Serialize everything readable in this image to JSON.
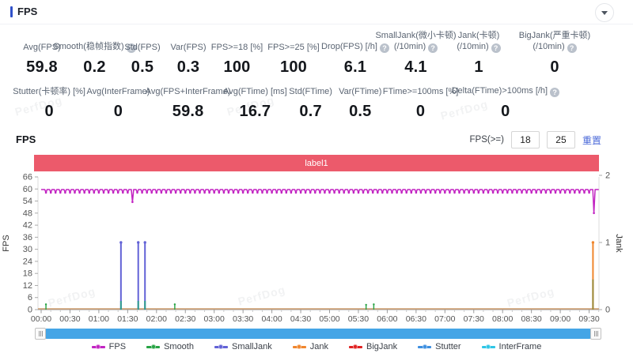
{
  "watermark": "PerfDog",
  "header": {
    "title": "FPS"
  },
  "stats": {
    "row1": [
      {
        "label": "Avg(FPS)",
        "value": "59.8"
      },
      {
        "label": "Smooth(稳帧指数)",
        "value": "0.2",
        "help": true
      },
      {
        "label": "Std(FPS)",
        "value": "0.5"
      },
      {
        "label": "Var(FPS)",
        "value": "0.3"
      },
      {
        "label": "FPS>=18 [%]",
        "value": "100"
      },
      {
        "label": "FPS>=25 [%]",
        "value": "100"
      },
      {
        "label": "Drop(FPS) [/h]",
        "value": "6.1",
        "help": true
      },
      {
        "label": "SmallJank(微小卡顿)",
        "label2": "(/10min)",
        "value": "4.1",
        "help": true
      },
      {
        "label": "Jank(卡顿)",
        "label2": "(/10min)",
        "value": "1",
        "help": true
      },
      {
        "label": "BigJank(严重卡顿)",
        "label2": "(/10min)",
        "value": "0",
        "help": true
      }
    ],
    "row2": [
      {
        "label": "Stutter(卡顿率) [%]",
        "value": "0"
      },
      {
        "label": "Avg(InterFrame)",
        "value": "0"
      },
      {
        "label": "Avg(FPS+InterFrame)",
        "value": "59.8"
      },
      {
        "label": "Avg(FTime) [ms]",
        "value": "16.7"
      },
      {
        "label": "Std(FTime)",
        "value": "0.7"
      },
      {
        "label": "Var(FTime)",
        "value": "0.5"
      },
      {
        "label": "FTime>=100ms [%]",
        "value": "0"
      },
      {
        "label": "Delta(FTime)>100ms [/h]",
        "value": "0",
        "help": true
      }
    ]
  },
  "chart_section": {
    "title": "FPS",
    "fps_ge_label": "FPS(>=)",
    "threshold_low": "18",
    "threshold_high": "25",
    "reset_label": "重置",
    "banner": {
      "text": "label1",
      "color": "#ec5a6b"
    }
  },
  "chart_data": {
    "type": "line",
    "x_ticks": [
      "00:00",
      "00:30",
      "01:00",
      "01:30",
      "02:00",
      "02:30",
      "03:00",
      "03:30",
      "04:00",
      "04:30",
      "05:00",
      "05:30",
      "06:00",
      "06:30",
      "07:00",
      "07:30",
      "08:00",
      "08:30",
      "09:00",
      "09:30"
    ],
    "x_tick_interval_min": 30,
    "x_minor_tick_min": 10,
    "t_end_min": 580,
    "y_left": {
      "label": "FPS",
      "ticks": [
        0,
        6,
        12,
        18,
        24,
        30,
        36,
        42,
        48,
        54,
        60,
        66
      ],
      "range": [
        0,
        66
      ]
    },
    "y_right": {
      "label": "Jank",
      "ticks": [
        0,
        1,
        2
      ],
      "range": [
        0,
        2
      ]
    },
    "series": [
      {
        "name": "FPS",
        "color": "#c224c2",
        "axis": "left",
        "render": "line",
        "baseline": 59.7,
        "dip_value": 58.2,
        "dip_step_min": 5,
        "deep_dips": [
          [
            95,
            53.5
          ],
          [
            574,
            48
          ]
        ]
      },
      {
        "name": "Smooth",
        "color": "#27a344",
        "axis": "left",
        "render": "spike",
        "points": [
          [
            5,
            2.6
          ],
          [
            139,
            2.6
          ],
          [
            338,
            2.4
          ],
          [
            346,
            2.6
          ]
        ]
      },
      {
        "name": "SmallJank",
        "color": "#6262d6",
        "base_color": "#2f9e8f",
        "base_frac": 0.13,
        "axis": "right",
        "render": "spike",
        "points": [
          [
            83,
            1
          ],
          [
            101,
            1
          ],
          [
            108,
            1
          ]
        ]
      },
      {
        "name": "Jank",
        "color": "#f0862d",
        "base_color": "#9a8a3a",
        "base_frac": 0.45,
        "axis": "right",
        "render": "spike",
        "points": [
          [
            574,
            1
          ]
        ]
      },
      {
        "name": "BigJank",
        "color": "#e02222",
        "axis": "right",
        "render": "spike",
        "points": []
      },
      {
        "name": "Stutter",
        "color": "#3d8fe0",
        "axis": "right",
        "render": "spike",
        "points": []
      },
      {
        "name": "InterFrame",
        "color": "#2ec6e6",
        "axis": "left",
        "render": "spike",
        "points": []
      }
    ],
    "baseline_line": {
      "color": "#cf9d6f",
      "value": 0
    },
    "legend_position": "bottom"
  },
  "scrollbar": {
    "color": "#45a5e6"
  }
}
